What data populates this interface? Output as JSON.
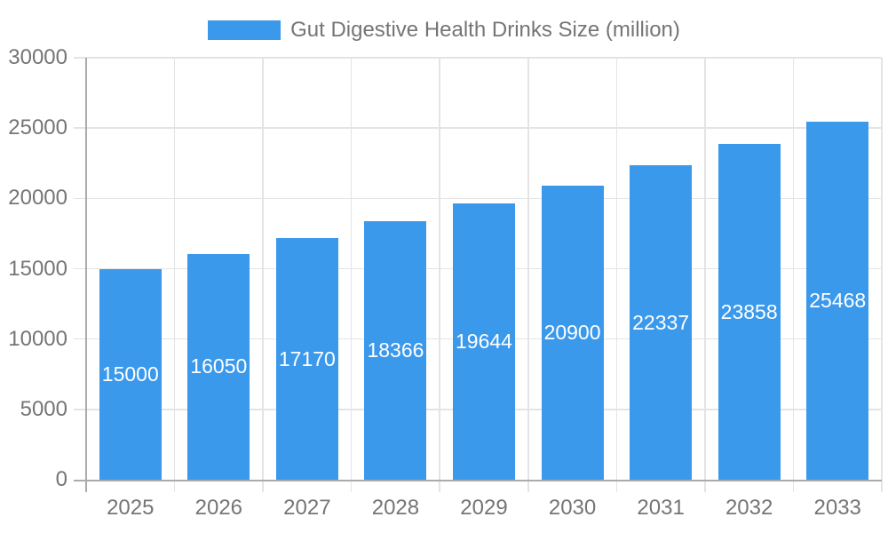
{
  "chart_data": {
    "type": "bar",
    "title": "Gut Digestive Health Drinks Size (million)",
    "categories": [
      "2025",
      "2026",
      "2027",
      "2028",
      "2029",
      "2030",
      "2031",
      "2032",
      "2033"
    ],
    "series": [
      {
        "name": "Gut Digestive Health Drinks Size (million)",
        "color": "#3B99EC",
        "values": [
          15000,
          16050,
          17170,
          18366,
          19644,
          20900,
          22337,
          23858,
          25468
        ]
      }
    ],
    "bar_value_labels": [
      "15000",
      "16050",
      "17170",
      "18366",
      "19644",
      "20900",
      "22337",
      "23858",
      "25468"
    ],
    "xlabel": "",
    "ylabel": "",
    "ylim": [
      0,
      30000
    ],
    "yticks": [
      0,
      5000,
      10000,
      15000,
      20000,
      25000,
      30000
    ],
    "grid": "both",
    "legend_position": "top"
  },
  "colors": {
    "bar": "#3B99EC",
    "bar_value_label": "#ffffff",
    "axis_text": "#757575",
    "grid_line": "#e4e4e4",
    "axis_line": "#ababab",
    "legend_text": "#757575"
  }
}
